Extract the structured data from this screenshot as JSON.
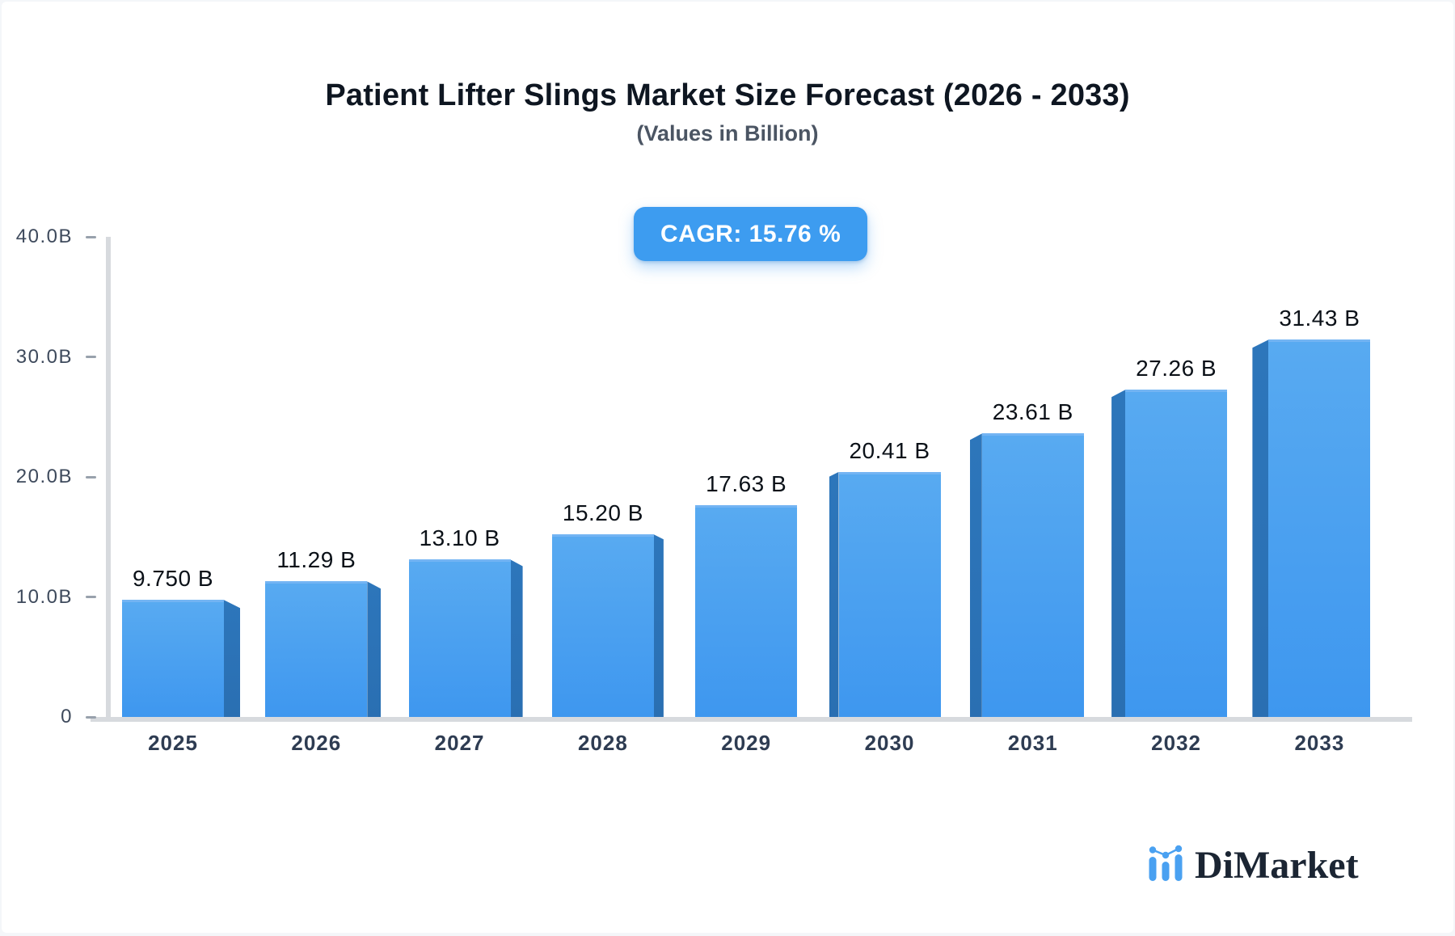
{
  "title": "Patient Lifter Slings Market Size Forecast (2026 - 2033)",
  "subtitle": "(Values in Billion)",
  "badge": {
    "label": "CAGR: 15.76 %"
  },
  "chart_data": {
    "type": "bar",
    "title": "Patient Lifter Slings Market Size Forecast (2026 - 2033)",
    "subtitle": "(Values in Billion)",
    "unit": "Billion",
    "cagr_percent": 15.76,
    "categories": [
      "2025",
      "2026",
      "2027",
      "2028",
      "2029",
      "2030",
      "2031",
      "2032",
      "2033"
    ],
    "values": [
      9.75,
      11.29,
      13.1,
      15.2,
      17.63,
      20.41,
      23.61,
      27.26,
      31.43
    ],
    "value_labels": [
      "9.750 B",
      "11.29 B",
      "13.10 B",
      "15.20 B",
      "17.63 B",
      "20.41 B",
      "23.61 B",
      "27.26 B",
      "31.43 B"
    ],
    "ylim": [
      0,
      40
    ],
    "yticks": [
      {
        "value": 0,
        "label": "0"
      },
      {
        "value": 10,
        "label": "10.0B"
      },
      {
        "value": 20,
        "label": "20.0B"
      },
      {
        "value": 30,
        "label": "30.0B"
      },
      {
        "value": 40,
        "label": "40.0B"
      }
    ],
    "xlabel": "",
    "ylabel": "",
    "grid": false,
    "legend": "none",
    "style": "3d-perspective-bars"
  },
  "colors": {
    "bar_face_top": "#58aaf1",
    "bar_face_bottom": "#3e97ef",
    "bar_side_3d": "#2d76bb",
    "badge_background": "#3d9cf0",
    "badge_text": "#ffffff",
    "axis_line": "#d7dade",
    "tick_mark": "#98a1ac",
    "title_text": "#0e1621",
    "subtitle_text": "#4b5563",
    "value_label_text": "#0b1118",
    "year_label_text": "#2e3c52",
    "y_tick_text": "#3e4a5c",
    "logo_text": "#1b2533",
    "logo_icon": "#4aa1f1"
  },
  "logo": {
    "text": "DiMarket",
    "icon": "bar-chart-trend-icon"
  }
}
